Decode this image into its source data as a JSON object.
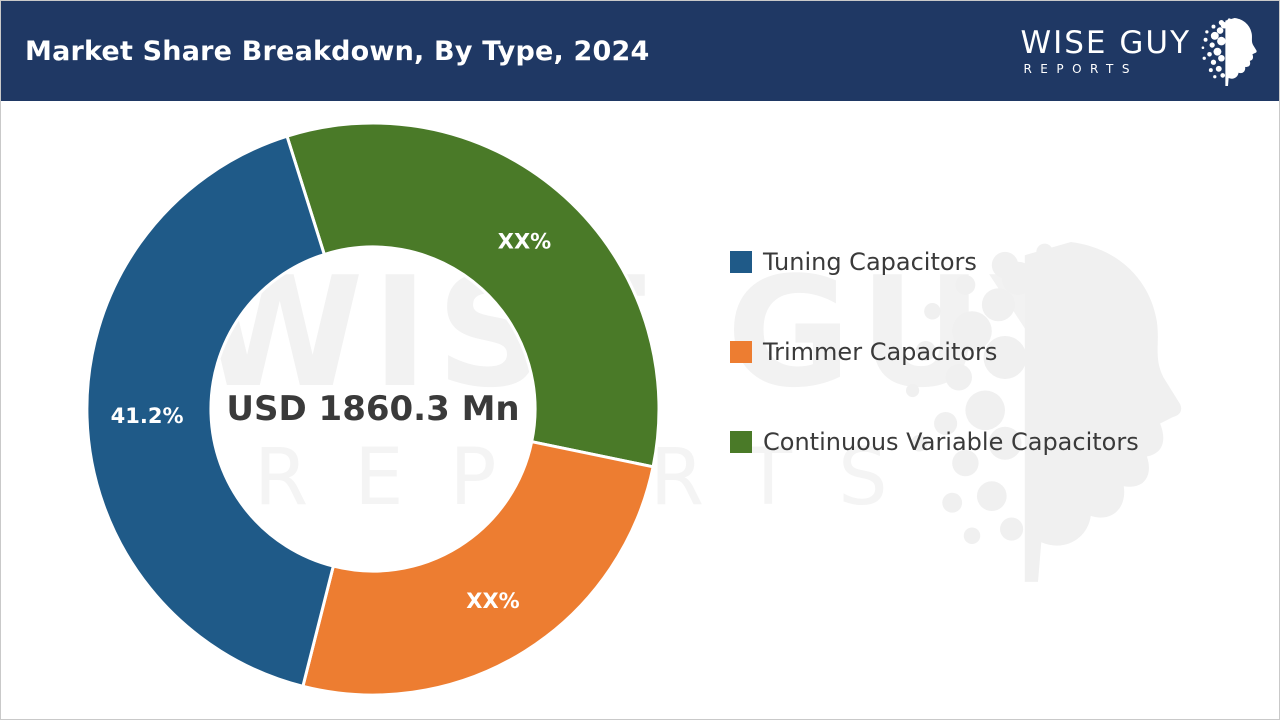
{
  "header": {
    "title": "Market Share Breakdown, By Type, 2024"
  },
  "logo": {
    "line1": "WISE GUY",
    "line2": "REPORTS"
  },
  "chart_data": {
    "type": "pie",
    "subtype": "donut",
    "title": "Market Share Breakdown, By Type, 2024",
    "center_label": "USD 1860.3 Mn",
    "legend_position": "right",
    "start_angle_deg": 342.5,
    "draw_order": [
      2,
      1,
      0
    ],
    "slices": [
      {
        "name": "Tuning Capacitors",
        "display_label": "41.2%",
        "value": 41.2,
        "color": "#1F5A88"
      },
      {
        "name": "Trimmer Capacitors",
        "display_label": "XX%",
        "value": 25.7,
        "color": "#ED7D31"
      },
      {
        "name": "Continuous Variable Capacitors",
        "display_label": "XX%",
        "value": 33.1,
        "color": "#4A7A28"
      }
    ]
  },
  "colors": {
    "header_bg": "#1F3864",
    "center_text": "#3A3A3A",
    "legend_text": "#3A3A3A",
    "watermark": "#F2F2F2",
    "slice_separator": "#FFFFFF"
  }
}
